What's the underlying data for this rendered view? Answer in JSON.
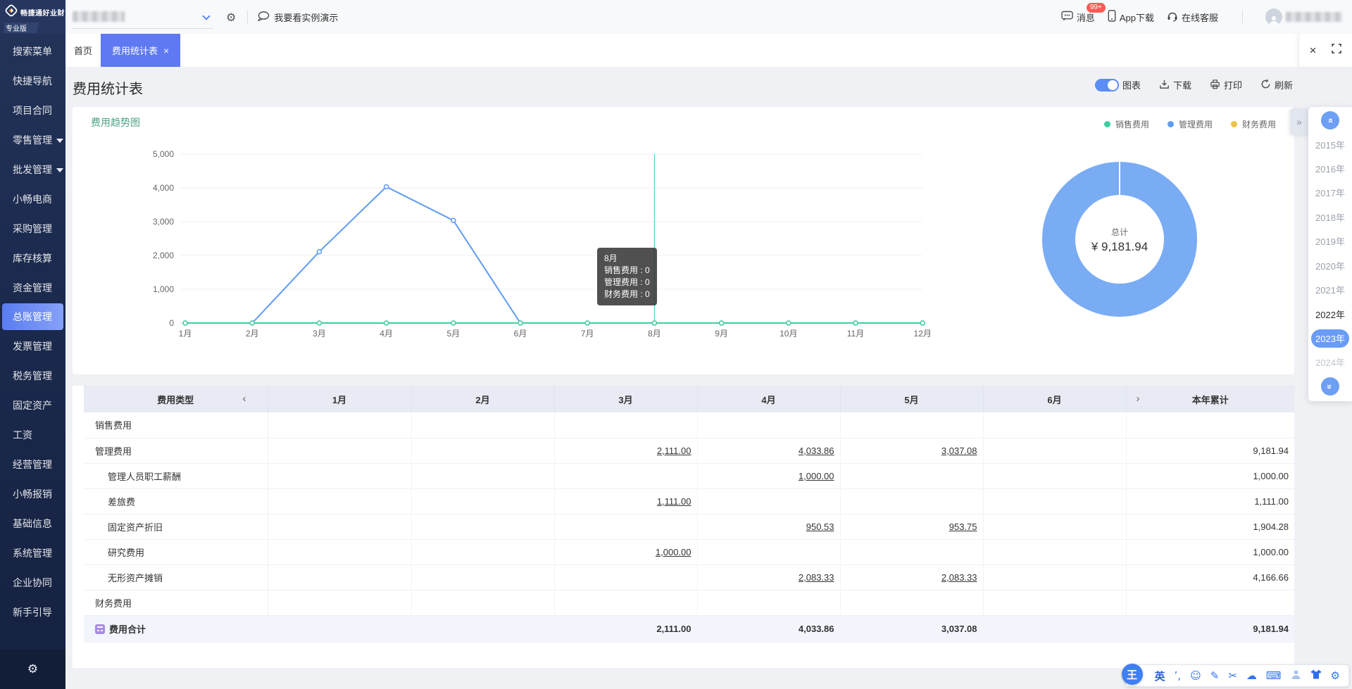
{
  "brand": {
    "name": "畅捷通好业财",
    "edition": "专业版"
  },
  "topbar": {
    "demo": "我要看实例演示",
    "messages": "消息",
    "badge": "99+",
    "app_download": "App下载",
    "support": "在线客服"
  },
  "tabs": {
    "home": "首页",
    "active": "费用统计表",
    "close": "×"
  },
  "sidebar": {
    "items": [
      {
        "label": "搜索菜单"
      },
      {
        "label": "快捷导航"
      },
      {
        "label": "项目合同"
      },
      {
        "label": "零售管理",
        "arrow": true
      },
      {
        "label": "批发管理",
        "arrow": true
      },
      {
        "label": "小畅电商"
      },
      {
        "label": "采购管理"
      },
      {
        "label": "库存核算"
      },
      {
        "label": "资金管理"
      },
      {
        "label": "总账管理",
        "active": true
      },
      {
        "label": "发票管理"
      },
      {
        "label": "税务管理"
      },
      {
        "label": "固定资产"
      },
      {
        "label": "工资"
      },
      {
        "label": "经营管理"
      },
      {
        "label": "小畅报销"
      },
      {
        "label": "基础信息"
      },
      {
        "label": "系统管理"
      },
      {
        "label": "企业协同"
      },
      {
        "label": "新手引导"
      }
    ]
  },
  "page": {
    "title": "费用统计表",
    "chart_section_title": "费用趋势图",
    "toolbar": {
      "chart_toggle": "图表",
      "download": "下载",
      "print": "打印",
      "refresh": "刷新"
    }
  },
  "legend": [
    {
      "label": "销售费用",
      "color": "#3ecda2"
    },
    {
      "label": "管理费用",
      "color": "#5f9bf2"
    },
    {
      "label": "财务费用",
      "color": "#eec34b"
    }
  ],
  "chart_data": [
    {
      "type": "line",
      "title": "费用趋势图",
      "categories": [
        "1月",
        "2月",
        "3月",
        "4月",
        "5月",
        "6月",
        "7月",
        "8月",
        "9月",
        "10月",
        "11月",
        "12月"
      ],
      "series": [
        {
          "name": "销售费用",
          "color": "#3ecda2",
          "values": [
            0,
            0,
            0,
            0,
            0,
            0,
            0,
            0,
            0,
            0,
            0,
            0
          ]
        },
        {
          "name": "管理费用",
          "color": "#5f9bf2",
          "values": [
            0,
            0,
            2111.0,
            4033.86,
            3037.08,
            0,
            0,
            0,
            0,
            0,
            0,
            0
          ]
        },
        {
          "name": "财务费用",
          "color": "#eec34b",
          "values": [
            0,
            0,
            0,
            0,
            0,
            0,
            0,
            0,
            0,
            0,
            0,
            0
          ]
        }
      ],
      "ylim": [
        0,
        5000
      ],
      "yticks": [
        "0",
        "1,000",
        "2,000",
        "3,000",
        "4,000",
        "5,000"
      ],
      "grid": true,
      "legend_position": "top-right",
      "axis_pointer_month": "8月"
    },
    {
      "type": "pie",
      "subtype": "donut",
      "center_label": "总计",
      "center_value": "¥ 9,181.94",
      "color": "#7aacf4",
      "slices": [
        {
          "name": "销售费用",
          "value": 0
        },
        {
          "name": "管理费用",
          "value": 9181.94
        },
        {
          "name": "财务费用",
          "value": 0
        }
      ]
    }
  ],
  "tooltip": {
    "title": "8月",
    "rows": [
      {
        "label": "销售费用",
        "value": "0"
      },
      {
        "label": "管理费用",
        "value": "0"
      },
      {
        "label": "财务费用",
        "value": "0"
      }
    ]
  },
  "year_panel": {
    "years": [
      {
        "label": "2015年"
      },
      {
        "label": "2016年"
      },
      {
        "label": "2017年"
      },
      {
        "label": "2018年"
      },
      {
        "label": "2019年"
      },
      {
        "label": "2020年"
      },
      {
        "label": "2021年"
      },
      {
        "label": "2022年",
        "near": true
      },
      {
        "label": "2023年",
        "selected": true
      },
      {
        "label": "2024年",
        "dim": true
      }
    ]
  },
  "table": {
    "columns": [
      "费用类型",
      "1月",
      "2月",
      "3月",
      "4月",
      "5月",
      "6月",
      "本年累计"
    ],
    "rows": [
      {
        "label": "销售费用",
        "indent": false,
        "m": [
          "",
          "",
          "",
          "",
          "",
          ""
        ],
        "links": [],
        "total": ""
      },
      {
        "label": "管理费用",
        "indent": false,
        "m": [
          "",
          "",
          "2,111.00",
          "4,033.86",
          "3,037.08",
          ""
        ],
        "links": [
          2,
          3,
          4
        ],
        "total": "9,181.94"
      },
      {
        "label": "管理人员职工薪酬",
        "indent": true,
        "m": [
          "",
          "",
          "",
          "1,000.00",
          "",
          ""
        ],
        "links": [
          3
        ],
        "total": "1,000.00"
      },
      {
        "label": "差旅费",
        "indent": true,
        "m": [
          "",
          "",
          "1,111.00",
          "",
          "",
          ""
        ],
        "links": [
          2
        ],
        "total": "1,111.00"
      },
      {
        "label": "固定资产折旧",
        "indent": true,
        "m": [
          "",
          "",
          "",
          "950.53",
          "953.75",
          ""
        ],
        "links": [
          3,
          4
        ],
        "total": "1,904.28"
      },
      {
        "label": "研究费用",
        "indent": true,
        "m": [
          "",
          "",
          "1,000.00",
          "",
          "",
          ""
        ],
        "links": [
          2
        ],
        "total": "1,000.00"
      },
      {
        "label": "无形资产摊销",
        "indent": true,
        "m": [
          "",
          "",
          "",
          "2,083.33",
          "2,083.33",
          ""
        ],
        "links": [
          3,
          4
        ],
        "total": "4,166.66"
      },
      {
        "label": "财务费用",
        "indent": false,
        "m": [
          "",
          "",
          "",
          "",
          "",
          ""
        ],
        "links": [],
        "total": ""
      }
    ],
    "total_row": {
      "label": "费用合计",
      "m": [
        "",
        "",
        "2,111.00",
        "4,033.86",
        "3,037.08",
        ""
      ],
      "total": "9,181.94"
    }
  },
  "ime": {
    "main": "王",
    "second": "英",
    "icons": [
      "punct",
      "smiley",
      "pencil",
      "scissors",
      "cloud",
      "keyboard",
      "person",
      "shirt",
      "gear"
    ]
  }
}
